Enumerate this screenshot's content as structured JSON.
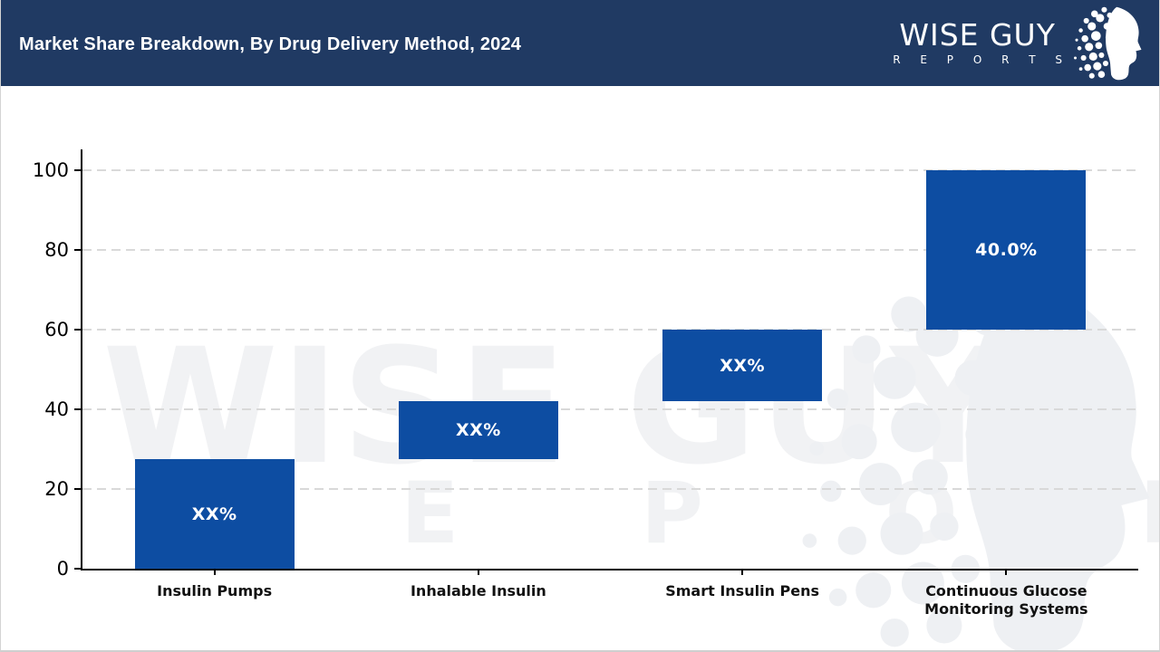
{
  "header": {
    "title": "Market Share Breakdown, By Drug Delivery Method, 2024",
    "logo": {
      "line1": "WISE GUY",
      "line2": "R E P O R T S"
    }
  },
  "watermark": {
    "line1": "WISE GUY",
    "line2": "R E P O R T S"
  },
  "colors": {
    "header_bg": "#203a63",
    "bar": "#0d4da2",
    "grid": "#d9d9d9",
    "axis": "#000000",
    "bar_label_text": "#ffffff",
    "tick_text": "#000000",
    "watermark": "#f1f2f4",
    "page_border": "#d4d4d4"
  },
  "chart_data": {
    "type": "bar",
    "subtype": "waterfall",
    "title": "Market Share Breakdown, By Drug Delivery Method, 2024",
    "categories": [
      "Insulin Pumps",
      "Inhalable Insulin",
      "Smart Insulin Pens",
      "Continuous Glucose Monitoring Systems"
    ],
    "segments": [
      {
        "category": "Insulin Pumps",
        "start": 0,
        "end": 27.5,
        "value": 27.5,
        "label": "XX%"
      },
      {
        "category": "Inhalable Insulin",
        "start": 27.5,
        "end": 42,
        "value": 14.5,
        "label": "XX%"
      },
      {
        "category": "Smart Insulin Pens",
        "start": 42,
        "end": 60,
        "value": 18,
        "label": "XX%"
      },
      {
        "category": "Continuous Glucose Monitoring Systems",
        "start": 60,
        "end": 100,
        "value": 40.0,
        "label": "40.0%"
      }
    ],
    "ylim": [
      0,
      100
    ],
    "yticks": [
      0,
      20,
      40,
      60,
      80,
      100
    ],
    "grid": "horizontal-dashed",
    "legend": "none"
  }
}
